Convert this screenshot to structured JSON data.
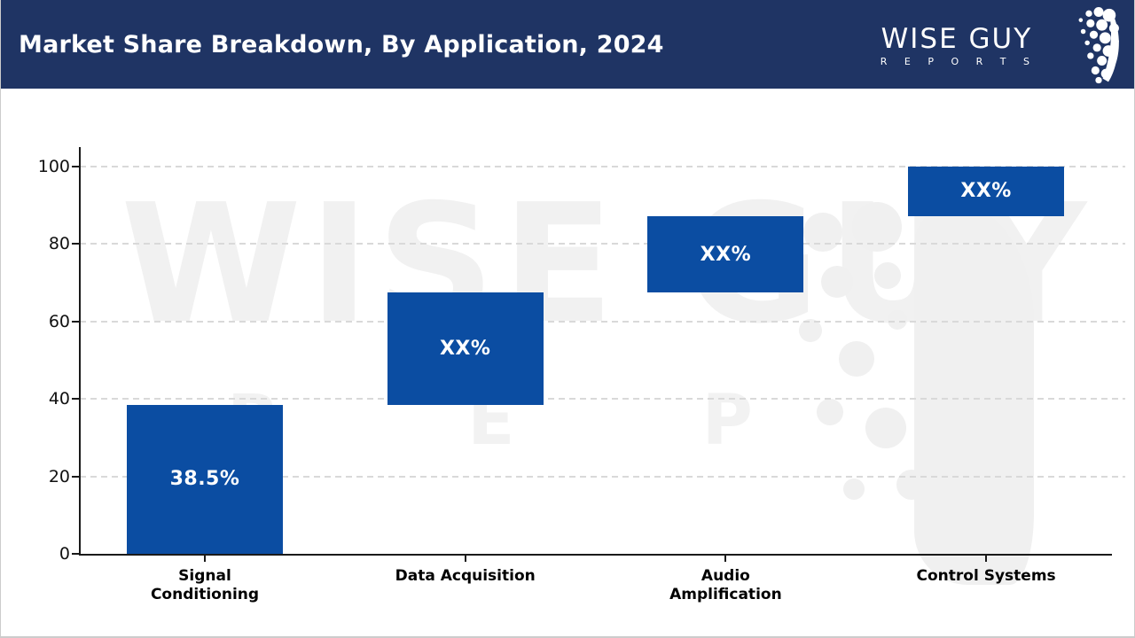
{
  "header": {
    "title": "Market Share Breakdown, By Application, 2024",
    "bg_color": "#1f3464",
    "logo": {
      "line1": "WISE GUY",
      "line2": "R E P O R T S"
    }
  },
  "watermark": {
    "line1": "WISE GUY",
    "line2": "R E P O R T S"
  },
  "colors": {
    "header_bg": "#1f3464",
    "bar": "#0b4da2",
    "grid": "#d9d9d9",
    "axis": "#1a1a1a",
    "watermark": "#f0f0f0",
    "bar_label": "#ffffff"
  },
  "chart_data": {
    "type": "bar",
    "subtype": "waterfall",
    "title": "Market Share Breakdown, By Application, 2024",
    "categories": [
      "Signal Conditioning",
      "Data Acquisition",
      "Audio Amplification",
      "Control Systems"
    ],
    "category_label_lines": [
      [
        "Signal",
        "Conditioning"
      ],
      [
        "Data Acquisition"
      ],
      [
        "Audio",
        "Amplification"
      ],
      [
        "Control Systems"
      ]
    ],
    "segments": [
      {
        "category": "Signal Conditioning",
        "start": 0,
        "end": 38.5,
        "label": "38.5%"
      },
      {
        "category": "Data Acquisition",
        "start": 38.5,
        "end": 67.5,
        "label": "XX%"
      },
      {
        "category": "Audio Amplification",
        "start": 67.5,
        "end": 87,
        "label": "XX%"
      },
      {
        "category": "Control Systems",
        "start": 87,
        "end": 100,
        "label": "XX%"
      }
    ],
    "y_ticks": [
      0,
      20,
      40,
      60,
      80,
      100
    ],
    "ylim": [
      0,
      100
    ],
    "xlabel": "",
    "ylabel": "",
    "grid": "horizontal-dashed",
    "legend": "none",
    "bar_color": "#0b4da2",
    "label_color": "#ffffff"
  }
}
